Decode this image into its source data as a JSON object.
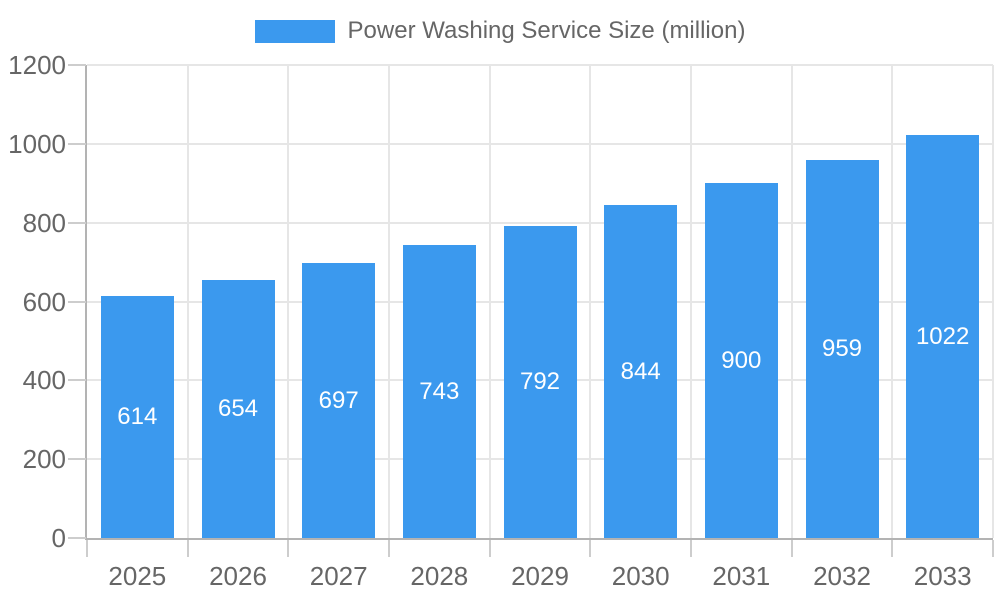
{
  "colors": {
    "bar": "#3B99EE",
    "grid": "#e6e6e6",
    "axis": "#b3b3b3",
    "tick": "#cdcdcd",
    "text": "#666666",
    "bar_label": "#ffffff"
  },
  "chart_data": {
    "type": "bar",
    "title": "Power Washing Service Size (million)",
    "series": [
      {
        "name": "Power Washing Service Size (million)",
        "values": [
          614,
          654,
          697,
          743,
          792,
          844,
          900,
          959,
          1022
        ]
      }
    ],
    "categories": [
      "2025",
      "2026",
      "2027",
      "2028",
      "2029",
      "2030",
      "2031",
      "2032",
      "2033"
    ],
    "xlabel": "",
    "ylabel": "",
    "ylim": [
      0,
      1200
    ],
    "yticks": [
      0,
      200,
      400,
      600,
      800,
      1000,
      1200
    ],
    "grid": true,
    "legend_position": "top-center",
    "bar_value_labels": "white, centered inside each bar"
  }
}
